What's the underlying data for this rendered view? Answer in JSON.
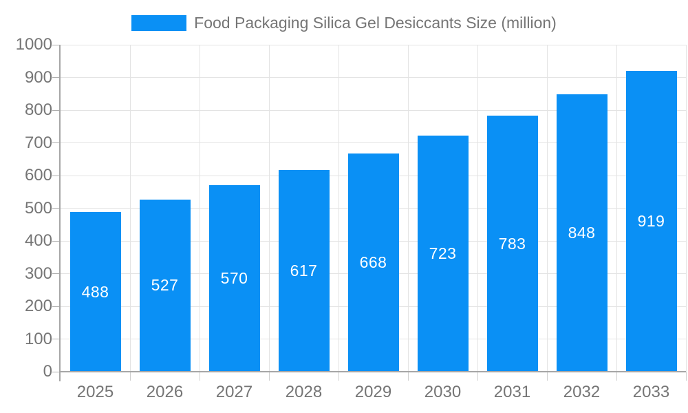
{
  "chart_data": {
    "type": "bar",
    "title": "Food Packaging Silica Gel Desiccants Size (million)",
    "categories": [
      "2025",
      "2026",
      "2027",
      "2028",
      "2029",
      "2030",
      "2031",
      "2032",
      "2033"
    ],
    "values": [
      488,
      527,
      570,
      617,
      668,
      723,
      783,
      848,
      919
    ],
    "xlabel": "",
    "ylabel": "",
    "ylim": [
      0,
      1000
    ],
    "ytick_step": 100,
    "grid": true,
    "legend_position": "top-center",
    "data_labels": "inside-center",
    "colors": {
      "bar": "#0A90F5",
      "grid": "#E3E3E3",
      "axis": "#A6A6A6",
      "ytick": "#ADADAD",
      "xtick": "#CFCFCF",
      "text": "#757575",
      "data_label": "#FFFFFF",
      "background": "#FFFFFF"
    }
  }
}
